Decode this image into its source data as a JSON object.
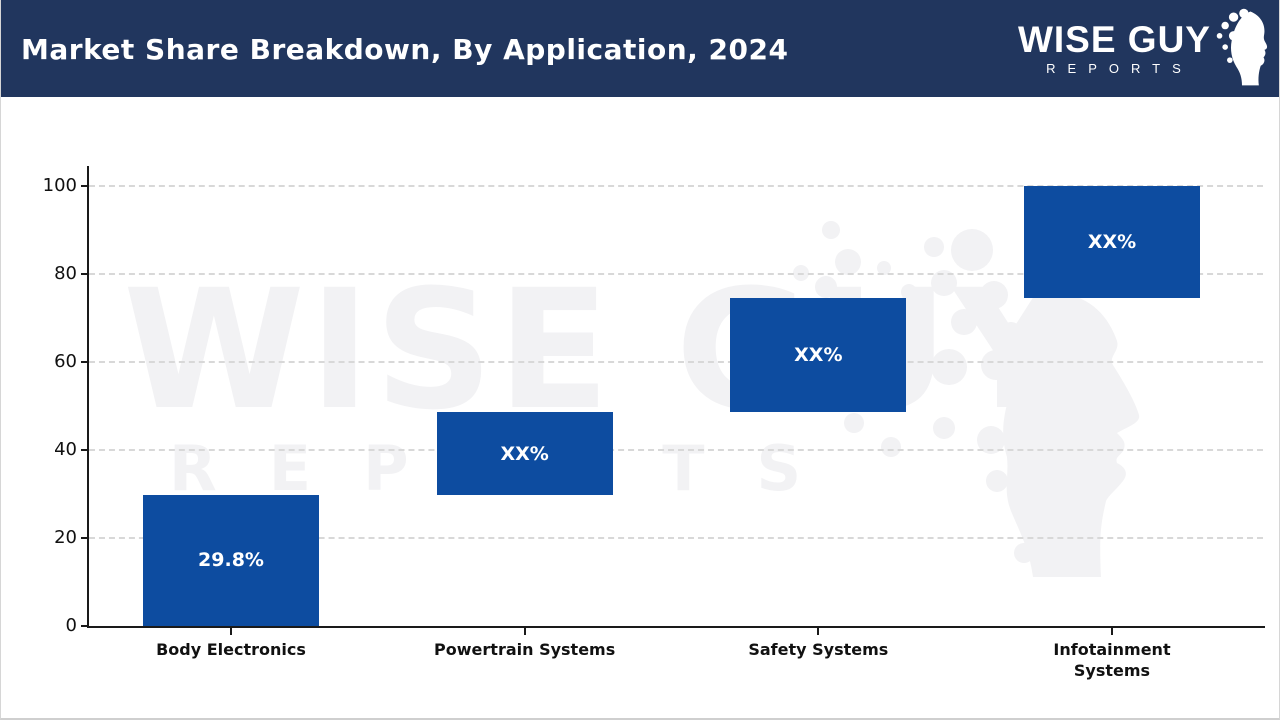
{
  "header": {
    "title": "Market Share Breakdown, By Application, 2024",
    "logo": {
      "wordmark": "WISE GUY",
      "subtext": "REPORTS"
    }
  },
  "watermark": {
    "line1": "WISE GUY",
    "line2": "REPORTS"
  },
  "chart_data": {
    "type": "bar",
    "variant": "waterfall",
    "title": "Market Share Breakdown, By Application, 2024",
    "categories": [
      "Body Electronics",
      "Powertrain Systems",
      "Safety Systems",
      "Infotainment\nSystems"
    ],
    "segments": [
      {
        "category": "Body Electronics",
        "start": 0,
        "end": 29.8,
        "label": "29.8%"
      },
      {
        "category": "Powertrain Systems",
        "start": 29.8,
        "end": 48.6,
        "label": "XX%"
      },
      {
        "category": "Safety Systems",
        "start": 48.6,
        "end": 74.5,
        "label": "XX%"
      },
      {
        "category": "Infotainment Systems",
        "start": 74.5,
        "end": 100,
        "label": "XX%"
      }
    ],
    "xlabel": "",
    "ylabel": "",
    "ylim": [
      0,
      100
    ],
    "yticks": [
      0,
      20,
      40,
      60,
      80,
      100
    ],
    "grid": "horizontal-dashed",
    "legend": "none",
    "colors": {
      "bar": "#0d4ca0",
      "bar_label_text": "#ffffff",
      "grid": "#d8d8d8",
      "axis": "#1a1a1a",
      "header_bg": "#21365e",
      "watermark": "#f2f2f4"
    }
  }
}
